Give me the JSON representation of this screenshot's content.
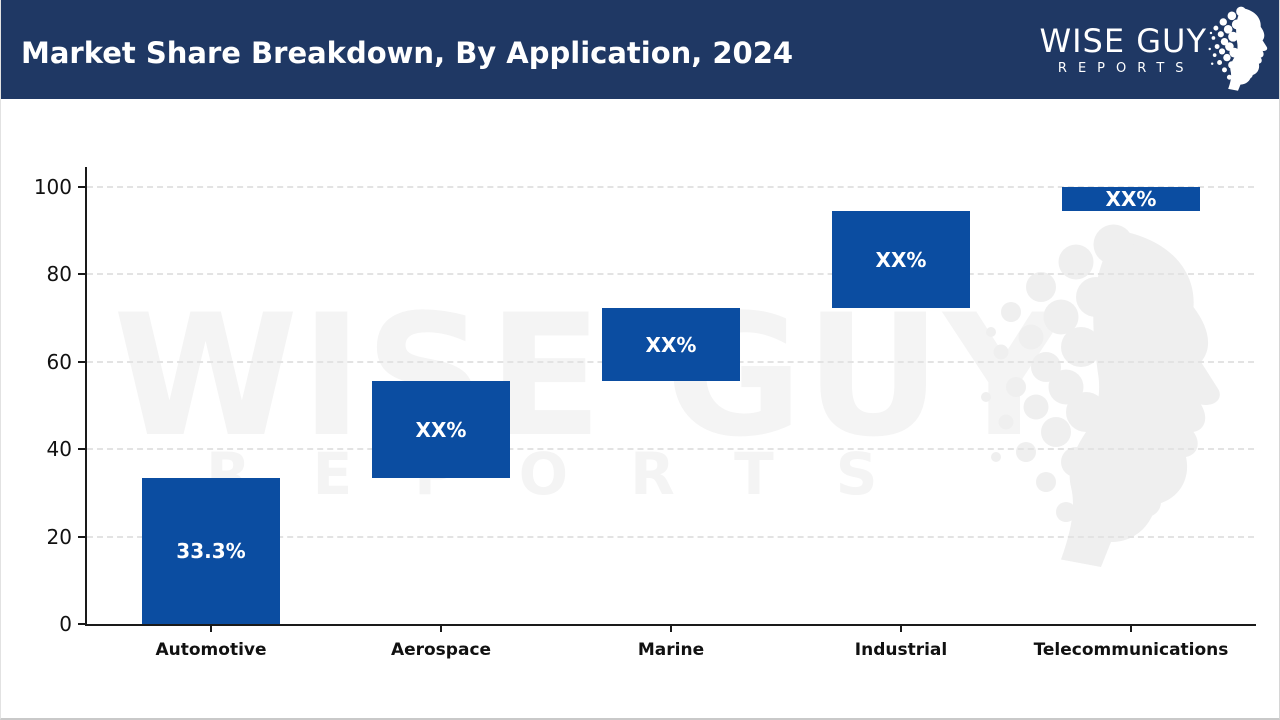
{
  "header": {
    "title": "Market Share Breakdown, By Application, 2024",
    "logo": {
      "line1": "WISE GUY",
      "line2": "REPORTS"
    }
  },
  "watermark": {
    "line1": "WISE GUY",
    "line2": "REPORTS"
  },
  "chart_data": {
    "type": "bar",
    "subtype": "stacked-waterfall",
    "title": "Market Share Breakdown, By Application, 2024",
    "categories": [
      "Automotive",
      "Aerospace",
      "Marine",
      "Industrial",
      "Telecommunications"
    ],
    "values": [
      33.3,
      22.2,
      16.7,
      22.2,
      5.6
    ],
    "cumulative_ranges": [
      [
        0,
        33.3
      ],
      [
        33.3,
        55.5
      ],
      [
        55.5,
        72.2
      ],
      [
        72.2,
        94.4
      ],
      [
        94.4,
        100
      ]
    ],
    "bar_labels": [
      "33.3%",
      "XX%",
      "XX%",
      "XX%",
      "XX%"
    ],
    "xlabel": "",
    "ylabel": "",
    "ylim": [
      0,
      100
    ],
    "yticks": [
      0,
      20,
      40,
      60,
      80,
      100
    ],
    "grid": "horizontal-dashed",
    "legend": "none",
    "bar_color": "#0b4da1",
    "bar_label_color": "#ffffff"
  },
  "colors": {
    "header_bg": "#1f3864",
    "bar": "#0b4da1",
    "watermark": "#f4f4f4",
    "axis": "#1a1a1a",
    "grid": "#e3e3e3"
  }
}
